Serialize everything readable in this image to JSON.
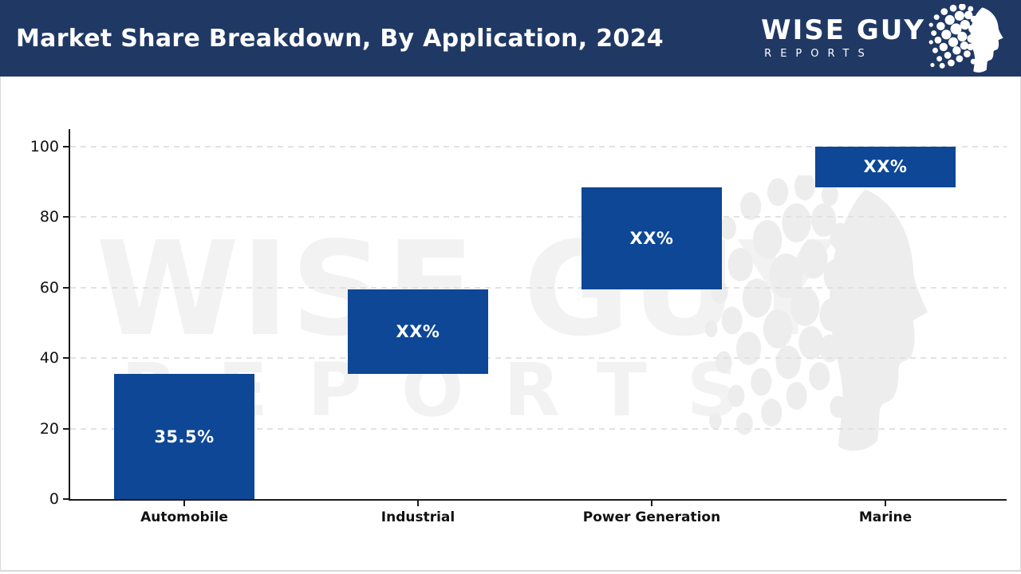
{
  "header": {
    "title": "Market Share Breakdown, By Application, 2024",
    "bg_color": "#203864",
    "brand": {
      "name": "WISE GUY",
      "subtitle": "REPORTS",
      "head_icon": "dotted-face-profile"
    }
  },
  "watermark": {
    "big_text": "WISE GUY",
    "small_text": "REPORTS"
  },
  "chart_data": {
    "type": "bar",
    "variant": "waterfall",
    "title": "Market Share Breakdown, By Application, 2024",
    "categories": [
      "Automobile",
      "Industrial",
      "Power Generation",
      "Marine"
    ],
    "segments": [
      {
        "category": "Automobile",
        "start": 0,
        "end": 35.5,
        "label": "35.5%"
      },
      {
        "category": "Industrial",
        "start": 35.5,
        "end": 59.5,
        "label": "XX%"
      },
      {
        "category": "Power Generation",
        "start": 59.5,
        "end": 88.5,
        "label": "XX%"
      },
      {
        "category": "Marine",
        "start": 88.5,
        "end": 100,
        "label": "XX%"
      }
    ],
    "xlabel": "",
    "ylabel": "",
    "y_ticks": [
      0,
      20,
      40,
      60,
      80,
      100
    ],
    "ylim": [
      0,
      105
    ],
    "grid": "horizontal-dashed",
    "legend": "none",
    "bar_color": "#0d4796",
    "bar_label_color": "#ffffff",
    "axis_color": "#1a1a1a"
  }
}
